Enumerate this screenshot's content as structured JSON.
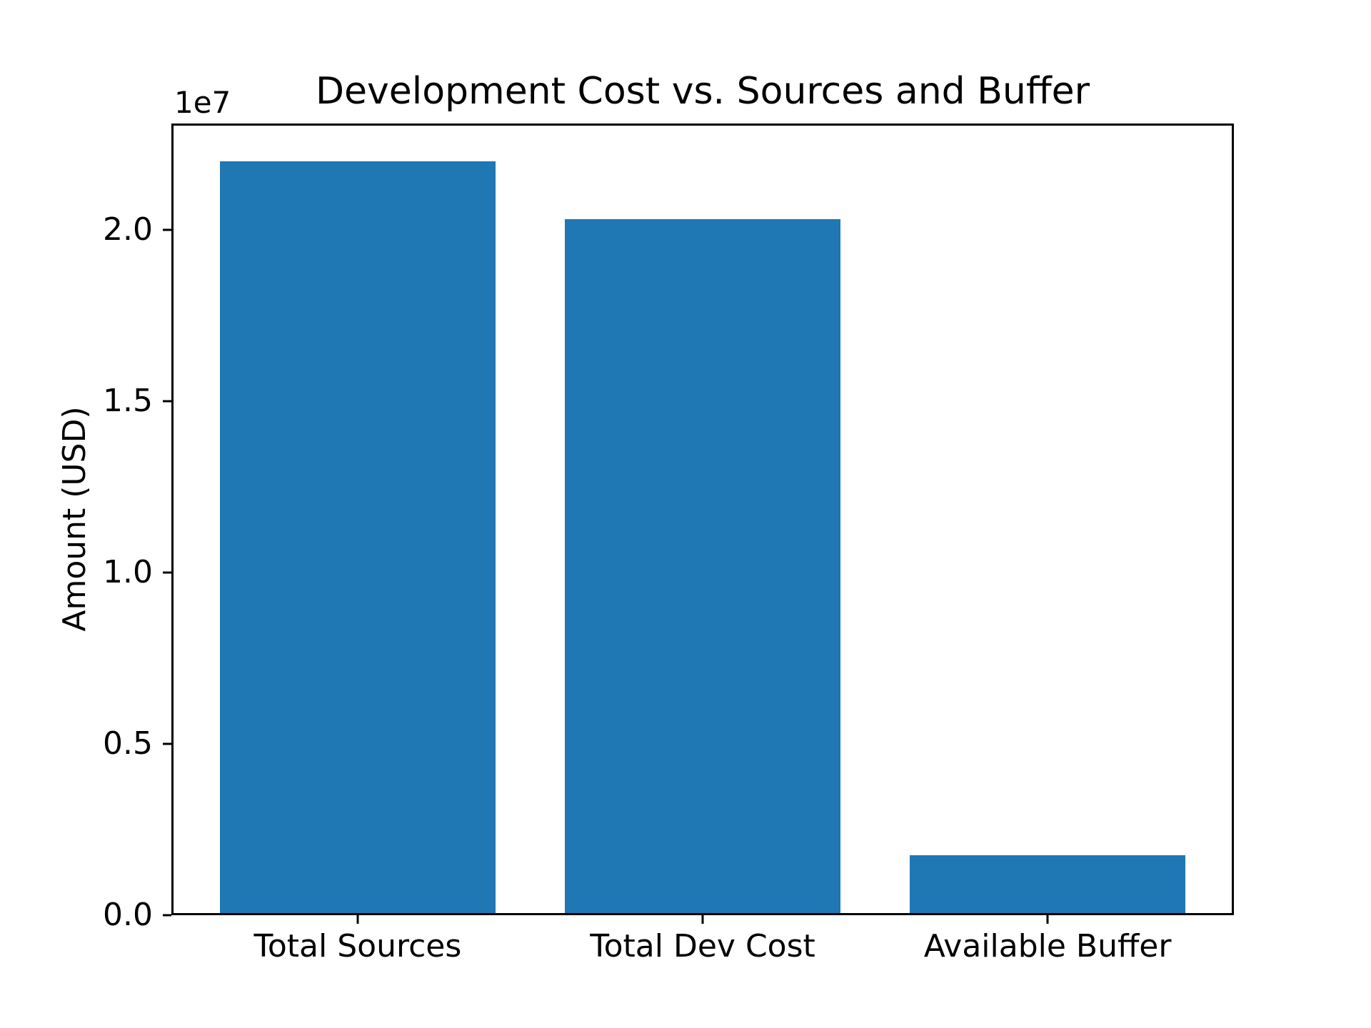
{
  "chart_data": {
    "type": "bar",
    "title": "Development Cost vs. Sources and Buffer",
    "xlabel": "",
    "ylabel": "Amount (USD)",
    "categories": [
      "Total Sources",
      "Total Dev Cost",
      "Available Buffer"
    ],
    "values": [
      22000000,
      20300000,
      1750000
    ],
    "ylim": [
      0,
      23100000
    ],
    "yticks": [
      0,
      5000000,
      10000000,
      15000000,
      20000000
    ],
    "ytick_labels": [
      "0.0",
      "0.5",
      "1.0",
      "1.5",
      "2.0"
    ],
    "offset_text": "1e7",
    "bar_color": "#1f77b4",
    "bar_width_fraction": 0.8,
    "grid": false,
    "legend": null
  }
}
